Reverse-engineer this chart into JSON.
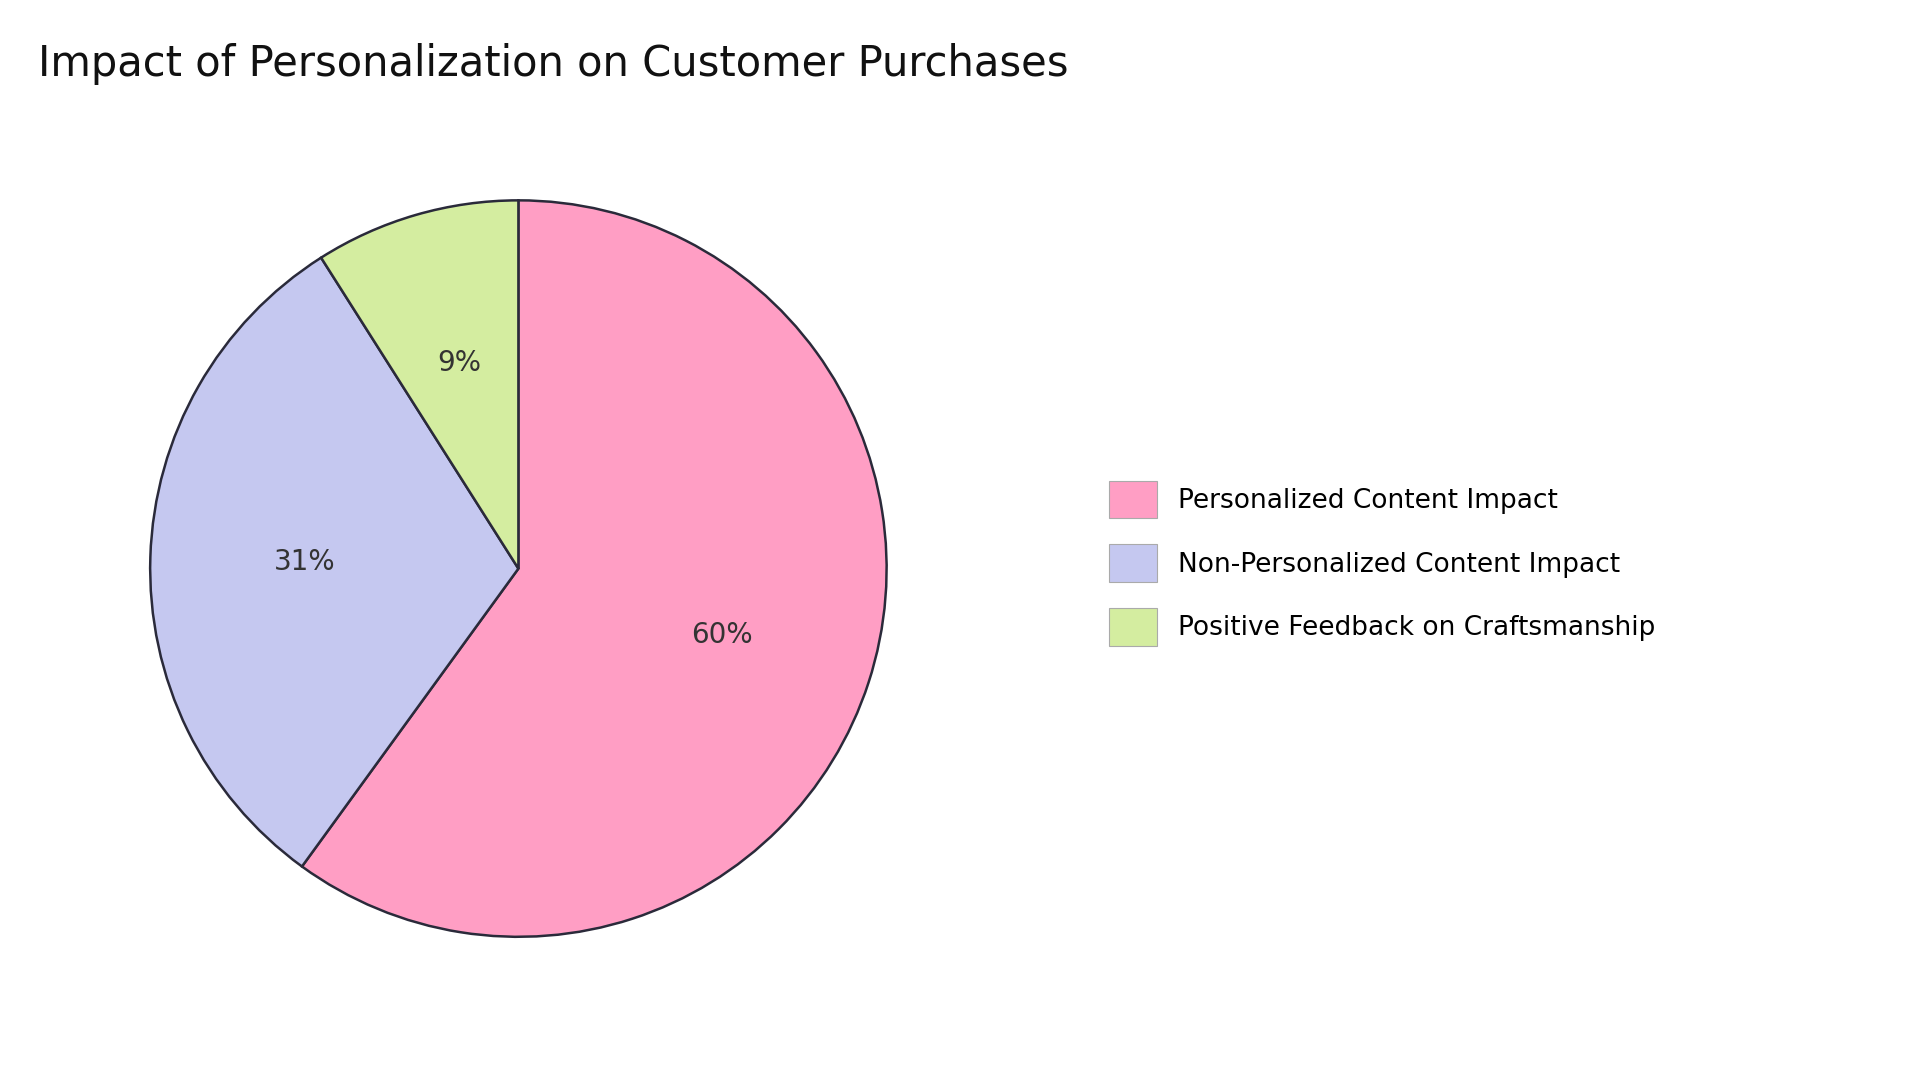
{
  "title": "Impact of Personalization on Customer Purchases",
  "labels": [
    "Personalized Content Impact",
    "Non-Personalized Content Impact",
    "Positive Feedback on Craftsmanship"
  ],
  "values": [
    60,
    31,
    9
  ],
  "colors": [
    "#FF9EC4",
    "#C5C8F0",
    "#D4EDA0"
  ],
  "edge_color": "#2A2A3A",
  "pct_labels": [
    "60%",
    "31%",
    "9%"
  ],
  "startangle": 90,
  "title_fontsize": 30,
  "pct_fontsize": 20,
  "legend_fontsize": 19,
  "background_color": "#FFFFFF"
}
